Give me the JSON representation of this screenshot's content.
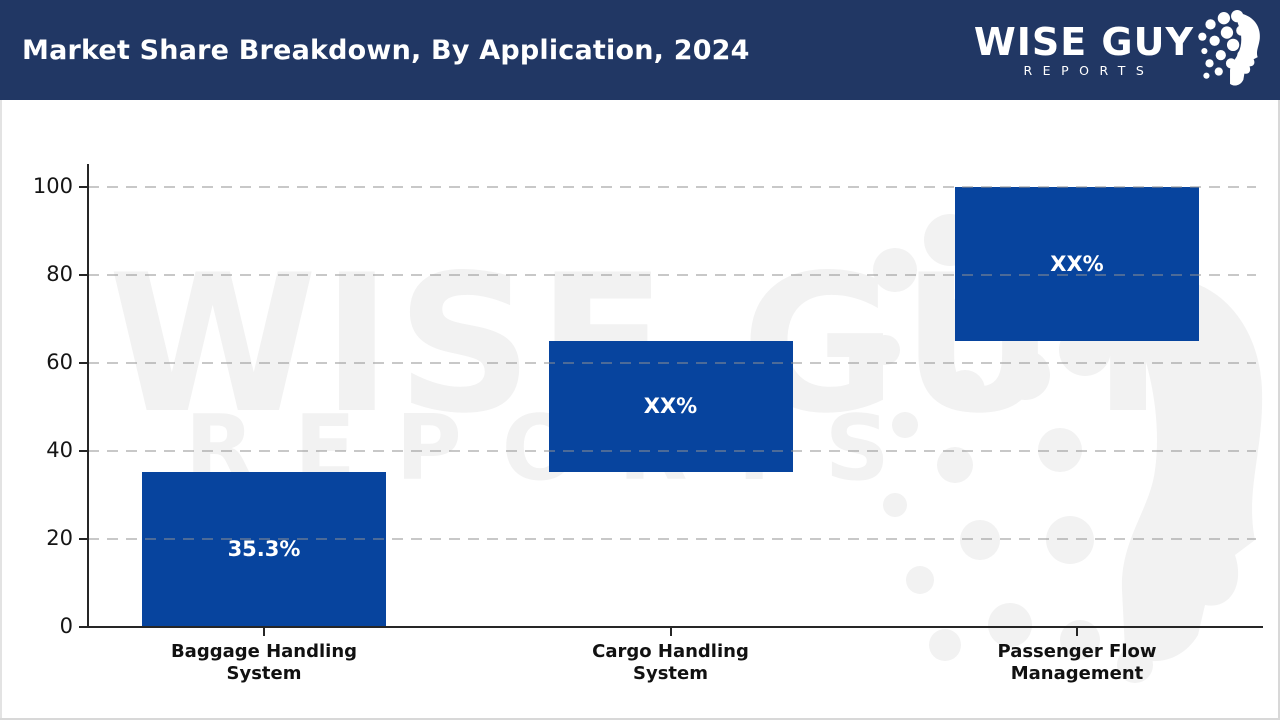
{
  "header": {
    "title": "Market Share Breakdown, By Application, 2024",
    "logo": {
      "wordmark": "WISE GUY",
      "subtext": "REPORTS"
    }
  },
  "watermark": {
    "wordmark": "WISE GUY",
    "subtext": "REPORTS"
  },
  "chart_data": {
    "type": "bar",
    "subtype": "waterfall",
    "title": "Market Share Breakdown, By Application, 2024",
    "categories": [
      [
        "Baggage Handling",
        "System"
      ],
      [
        "Cargo Handling",
        "System"
      ],
      [
        "Passenger Flow",
        "Management"
      ]
    ],
    "segments": [
      {
        "category": "Baggage Handling System",
        "start": 0,
        "end": 35.3,
        "value": 35.3,
        "label": "35.3%"
      },
      {
        "category": "Cargo Handling System",
        "start": 35.3,
        "end": 65,
        "value": 29.7,
        "label": "XX%"
      },
      {
        "category": "Passenger Flow Management",
        "start": 65,
        "end": 100,
        "value": 35,
        "label": "XX%"
      }
    ],
    "ylim": [
      0,
      100
    ],
    "yticks": [
      0,
      20,
      40,
      60,
      80,
      100
    ],
    "grid": "horizontal-dashed",
    "legend": "none",
    "bar_color": "#07449e",
    "bar_label_color": "#ffffff",
    "axis_color": "#262626",
    "header_bg": "#213764",
    "watermark_color": "#f2f2f2"
  }
}
